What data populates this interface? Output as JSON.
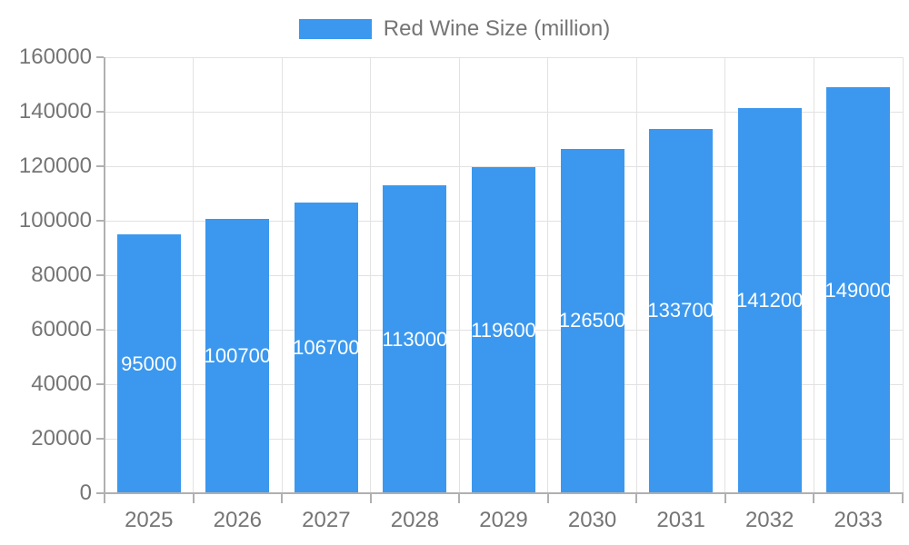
{
  "legend": {
    "label": "Red Wine Size (million)"
  },
  "colors": {
    "bar": "#3B98EE",
    "axis_label": "#757575",
    "bar_label": "#FFFFFF",
    "gridline": "#E2E2E2",
    "axis_line": "#B0B0B0",
    "background": "#FFFFFF"
  },
  "chart_data": {
    "type": "bar",
    "title": "Red Wine Size (million)",
    "series": [
      {
        "name": "Red Wine Size (million)",
        "values": [
          95000,
          100700,
          106700,
          113000,
          119600,
          126500,
          133700,
          141200,
          149000
        ]
      }
    ],
    "categories": [
      "2025",
      "2026",
      "2027",
      "2028",
      "2029",
      "2030",
      "2031",
      "2032",
      "2033"
    ],
    "values": [
      95000,
      100700,
      106700,
      113000,
      119600,
      126500,
      133700,
      141200,
      149000
    ],
    "xlabel": "",
    "ylabel": "",
    "ylim": [
      0,
      160000
    ],
    "y_ticks": [
      0,
      20000,
      40000,
      60000,
      80000,
      100000,
      120000,
      140000,
      160000
    ],
    "grid": true,
    "legend_position": "top",
    "bar_labels": "inside-center-white"
  }
}
